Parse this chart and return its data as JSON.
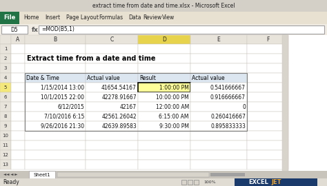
{
  "title_bar": "extract time from date and time.xlsx - Microsoft Excel",
  "formula_cell": "D5",
  "formula": "=MOD(B5,1)",
  "sheet_title": "Extract time from a date and time",
  "col_labels": [
    "A",
    "B",
    "C",
    "D",
    "E",
    "F"
  ],
  "headers": [
    "Date & Time",
    "Actual value",
    "Result",
    "Actual value"
  ],
  "rows": [
    [
      "1/15/2014 13:00",
      "41654.54167",
      "1:00:00 PM",
      "0.541666667"
    ],
    [
      "10/1/2015 22:00",
      "42278.91667",
      "10:00:00 PM",
      "0.916666667"
    ],
    [
      "6/12/2015",
      "42167",
      "12:00:00 AM",
      "0"
    ],
    [
      "7/10/2016 6:15",
      "42561.26042",
      "6:15:00 AM",
      "0.260416667"
    ],
    [
      "9/26/2016 21:30",
      "42639.89583",
      "9:30:00 PM",
      "0.895833333"
    ]
  ],
  "titlebar_bg": "#d4d0c8",
  "ribbon_bg": "#e8e0d0",
  "file_btn_color": "#217346",
  "formula_bar_bg": "#f0ece4",
  "sheet_bg": "#ffffff",
  "col_header_bg": "#e8e4dc",
  "col_header_active_bg": "#e8d44c",
  "row_header_bg": "#e8e4dc",
  "row_header_active_bg": "#f5e87a",
  "table_header_bg": "#dce6f1",
  "active_cell_bg": "#ffff99",
  "grid_color": "#c8c4bc",
  "exceljet_bg": "#1a3a6b",
  "exceljet_text": "#ffffff",
  "exceljet_jet": "#f5a623",
  "status_bar_bg": "#e0dcd4",
  "sheet_tab_bg": "#ffffff"
}
